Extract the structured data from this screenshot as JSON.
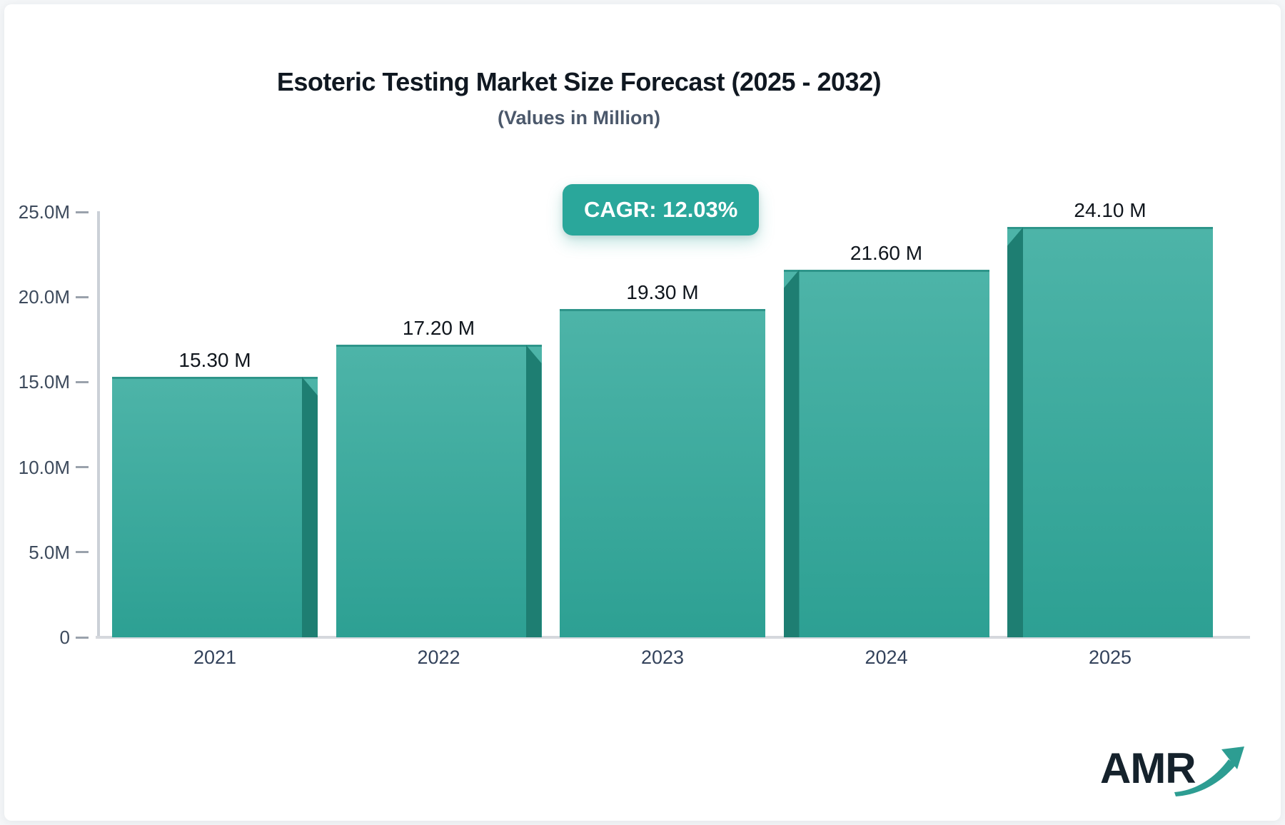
{
  "page": {
    "background": "#f4f6f8",
    "card_background": "#ffffff"
  },
  "header": {
    "title": "Esoteric Testing Market Size Forecast (2025 - 2032)",
    "subtitle": "(Values in Million)"
  },
  "badge": {
    "label": "CAGR: 12.03%",
    "background": "#2aa79b",
    "text_color": "#ffffff"
  },
  "chart_data": {
    "type": "bar",
    "title": "Esoteric Testing Market Size Forecast (2025 - 2032)",
    "subtitle": "(Values in Million)",
    "categories": [
      "2021",
      "2022",
      "2023",
      "2024",
      "2025"
    ],
    "values": [
      15.3,
      17.2,
      19.3,
      21.6,
      24.1
    ],
    "value_labels": [
      "15.30 M",
      "17.20 M",
      "19.30 M",
      "21.60 M",
      "24.10 M"
    ],
    "xlabel": "",
    "ylabel": "",
    "ylim": [
      0,
      25
    ],
    "yticks": [
      {
        "value": 25,
        "label": "25.0M"
      },
      {
        "value": 20,
        "label": "20.0M"
      },
      {
        "value": 15,
        "label": "15.0M"
      },
      {
        "value": 10,
        "label": "10.0M"
      },
      {
        "value": 5,
        "label": "5.0M"
      },
      {
        "value": 0,
        "label": "0"
      }
    ],
    "grid": false,
    "legend": "none",
    "cagr_annotation": "CAGR: 12.03%",
    "bar_color_top": "#4db4a8",
    "bar_color_bottom": "#2da093",
    "bar_edge_color": "#1e7e72"
  },
  "logo": {
    "text": "AMR",
    "arrow_color": "#2d9d92"
  }
}
